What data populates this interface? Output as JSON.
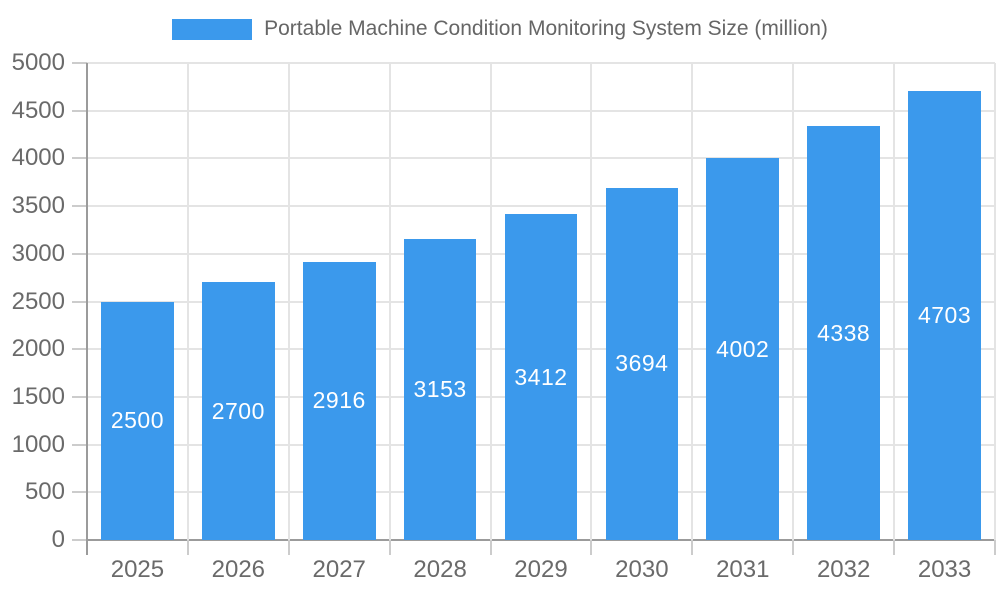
{
  "chart_data": {
    "type": "bar",
    "title": "Portable Machine Condition Monitoring System Size (million)",
    "series_name": "Portable Machine Condition Monitoring System Size (million)",
    "categories": [
      "2025",
      "2026",
      "2027",
      "2028",
      "2029",
      "2030",
      "2031",
      "2032",
      "2033"
    ],
    "values": [
      2500,
      2700,
      2916,
      3153,
      3412,
      3694,
      4002,
      4338,
      4703
    ],
    "value_labels": [
      "2500",
      "2700",
      "2916",
      "3153",
      "3412",
      "3694",
      "4002",
      "4338",
      "4703"
    ],
    "xlabel": "",
    "ylabel": "",
    "ylim": [
      0,
      5000
    ],
    "ytick_step": 500,
    "ytick_labels": [
      "0",
      "500",
      "1000",
      "1500",
      "2000",
      "2500",
      "3000",
      "3500",
      "4000",
      "4500",
      "5000"
    ],
    "grid": true,
    "legend_position": "top",
    "bar_label_position": "inside-center",
    "colors": {
      "bar": "#3b99ec",
      "bar_label": "#ffffff",
      "axis_text": "#6a6a6a",
      "legend_text": "#666666",
      "grid_line": "#e4e4e4",
      "axis_line": "#9b9b9b",
      "tick": "#cccccc",
      "background": "#ffffff"
    }
  }
}
